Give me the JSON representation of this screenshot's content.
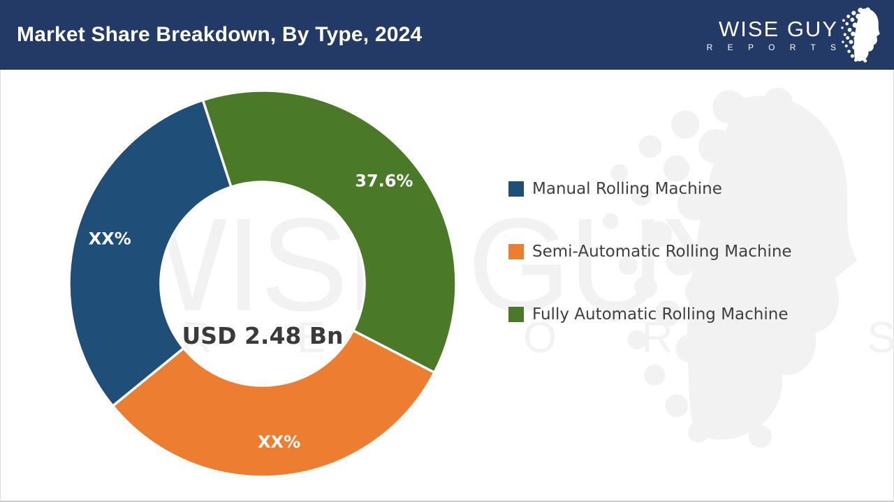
{
  "header": {
    "title": "Market Share Breakdown, By Type, 2024",
    "background_color": "#233A66",
    "logo": {
      "line1": "WISE GUY",
      "line2": "R E P O R T S"
    }
  },
  "watermark": {
    "line1": "WISE GUY",
    "line2": "R E P O R T S"
  },
  "chart_data": {
    "type": "pie",
    "subtype": "donut",
    "title": "Market Share Breakdown, By Type, 2024",
    "center_label": "USD 2.48 Bn",
    "start_angle_deg": -18,
    "legend_position": "right",
    "slices": [
      {
        "name": "Fully Automatic Rolling Machine",
        "value_pct": 37.6,
        "display_label": "37.6%",
        "color": "#4A7A28"
      },
      {
        "name": "Semi-Automatic Rolling Machine",
        "value_pct": 31.5,
        "display_label": "XX%",
        "color": "#ED7D31"
      },
      {
        "name": "Manual Rolling Machine",
        "value_pct": 30.9,
        "display_label": "XX%",
        "color": "#1F4E79"
      }
    ]
  },
  "legend": {
    "items": [
      {
        "label": "Manual Rolling Machine",
        "color": "#1F4E79"
      },
      {
        "label": "Semi-Automatic Rolling Machine",
        "color": "#ED7D31"
      },
      {
        "label": "Fully Automatic Rolling Machine",
        "color": "#4A7A28"
      }
    ]
  }
}
